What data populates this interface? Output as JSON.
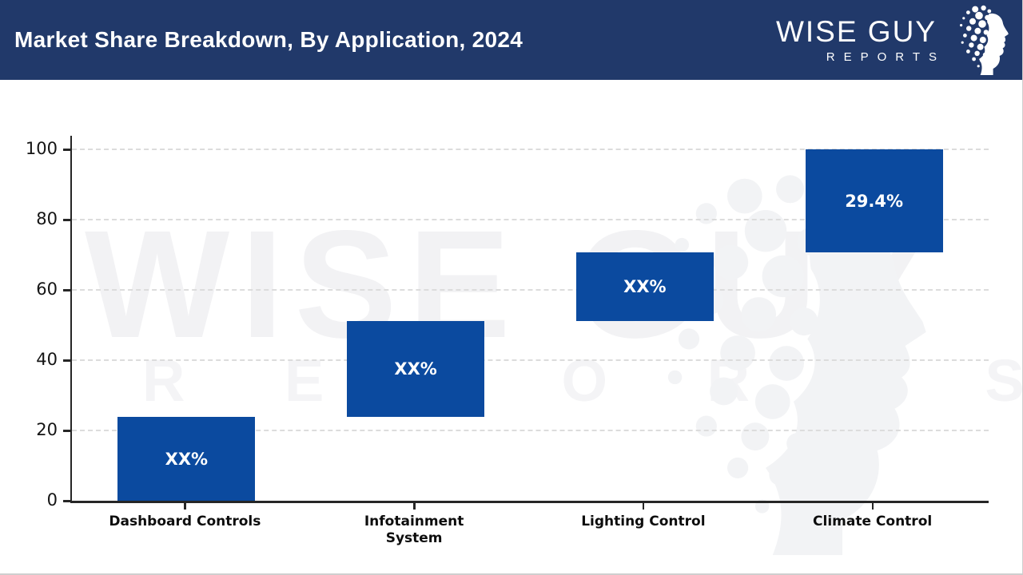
{
  "header": {
    "title": "Market Share Breakdown, By Application, 2024",
    "bg_color": "#21396a",
    "logo": {
      "name": "WISE GUY",
      "sub": "REPORTS"
    }
  },
  "watermark": {
    "name": "WISE GUY",
    "sub": "R E P O R T S"
  },
  "chart_data": {
    "type": "bar",
    "variant": "floating-waterfall",
    "title": "Market Share Breakdown, By Application, 2024",
    "xlabel": "",
    "ylabel": "",
    "ylim": [
      0,
      100
    ],
    "yticks": [
      0,
      20,
      40,
      60,
      80,
      100
    ],
    "grid": "horizontal-dashed",
    "legend": null,
    "categories": [
      "Dashboard Controls",
      "Infotainment\nSystem",
      "Lighting Control",
      "Climate Control"
    ],
    "bars": [
      {
        "category": "Dashboard Controls",
        "start": 0,
        "end": 23.8,
        "value": 23.8,
        "value_label": "XX%"
      },
      {
        "category": "Infotainment System",
        "start": 23.8,
        "end": 51.2,
        "value": 27.4,
        "value_label": "XX%"
      },
      {
        "category": "Lighting Control",
        "start": 51.2,
        "end": 70.6,
        "value": 19.4,
        "value_label": "XX%"
      },
      {
        "category": "Climate Control",
        "start": 70.6,
        "end": 100,
        "value": 29.4,
        "value_label": "29.4%"
      }
    ],
    "colors": {
      "bar": "#0b4a9f",
      "bar_label": "#ffffff",
      "axis": "#262626",
      "grid": "#dcdcdc",
      "tick_text": "#141414"
    }
  }
}
